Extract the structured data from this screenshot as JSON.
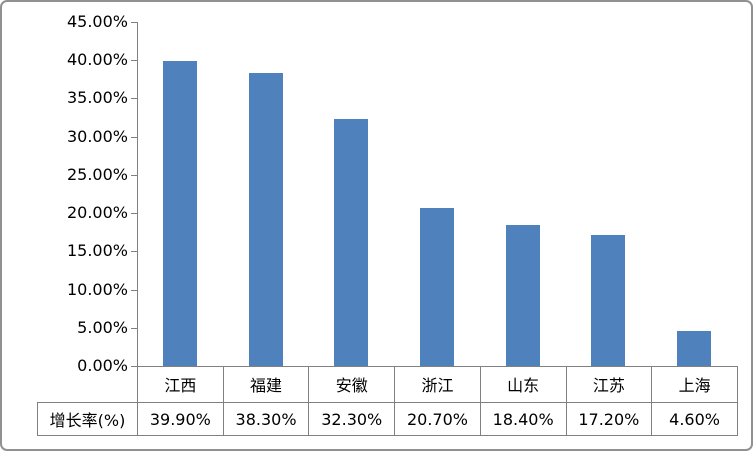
{
  "chart_data": {
    "type": "bar",
    "title": "",
    "categories": [
      "江西",
      "福建",
      "安徽",
      "浙江",
      "山东",
      "江苏",
      "上海"
    ],
    "values": [
      39.9,
      38.3,
      32.3,
      20.7,
      18.4,
      17.2,
      4.6
    ],
    "series": [
      {
        "name": "增长率(%)",
        "values": [
          39.9,
          38.3,
          32.3,
          20.7,
          18.4,
          17.2,
          4.6
        ]
      }
    ],
    "data_table_row_label": "增长率(%)",
    "values_display": [
      "39.90%",
      "38.30%",
      "32.30%",
      "20.70%",
      "18.40%",
      "17.20%",
      "4.60%"
    ],
    "y_ticks": [
      "0.00%",
      "5.00%",
      "10.00%",
      "15.00%",
      "20.00%",
      "25.00%",
      "30.00%",
      "35.00%",
      "40.00%",
      "45.00%"
    ],
    "xlabel": "",
    "ylabel": "",
    "ylim": [
      0,
      45
    ],
    "y_step": 5,
    "grid": false,
    "legend_position": "none",
    "data_table_shown": true
  },
  "colors": {
    "bar": "#4F81BD",
    "axis": "#808080",
    "table_border": "#808080",
    "frame_border": "#919191",
    "text": "#000000",
    "background": "#FFFFFF"
  }
}
